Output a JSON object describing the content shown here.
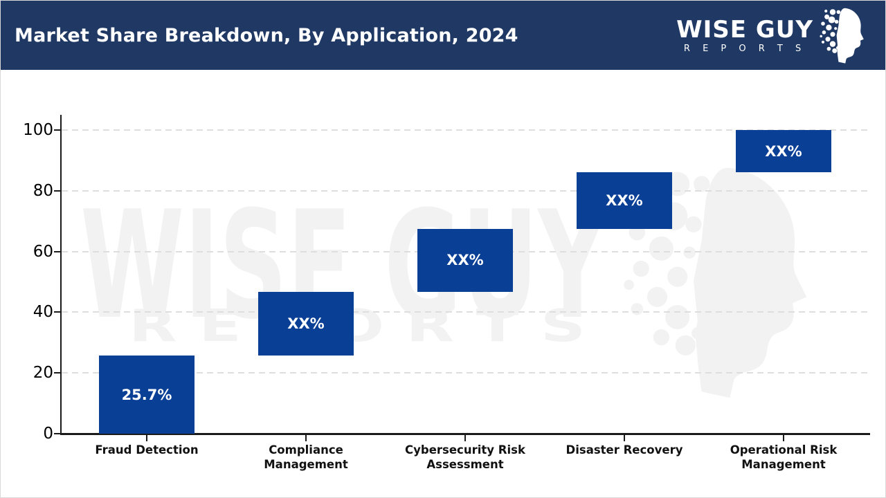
{
  "header": {
    "title": "Market Share Breakdown, By Application, 2024",
    "bg_color": "#1f3864",
    "logo": {
      "line1": "WISE GUY",
      "line2": "R E P O R T S"
    }
  },
  "watermark": {
    "line1": "WISE GUY",
    "line2": "R E P O R T S"
  },
  "chart_data": {
    "type": "bar",
    "subtype": "floating-waterfall",
    "title": "Market Share Breakdown, By Application, 2024",
    "xlabel": "",
    "ylabel": "",
    "ylim": [
      0,
      100
    ],
    "yticks": [
      0,
      20,
      40,
      60,
      80,
      100
    ],
    "grid": "horizontal-dashed",
    "legend": "none",
    "bar_color": "#0a3f96",
    "bar_label_color": "#ffffff",
    "categories": [
      "Fraud Detection",
      "Compliance\nManagement",
      "Cybersecurity Risk\nAssessment",
      "Disaster Recovery",
      "Operational Risk\nManagement"
    ],
    "series": [
      {
        "name": "Market Share",
        "segments": [
          {
            "category": "Fraud Detection",
            "start": 0,
            "end": 25.7,
            "label": "25.7%"
          },
          {
            "category": "Compliance Management",
            "start": 25.7,
            "end": 46.8,
            "label": "XX%"
          },
          {
            "category": "Cybersecurity Risk Assessment",
            "start": 46.8,
            "end": 67.4,
            "label": "XX%"
          },
          {
            "category": "Disaster Recovery",
            "start": 67.4,
            "end": 86.1,
            "label": "XX%"
          },
          {
            "category": "Operational Risk Management",
            "start": 86.1,
            "end": 100,
            "label": "XX%"
          }
        ]
      }
    ]
  }
}
